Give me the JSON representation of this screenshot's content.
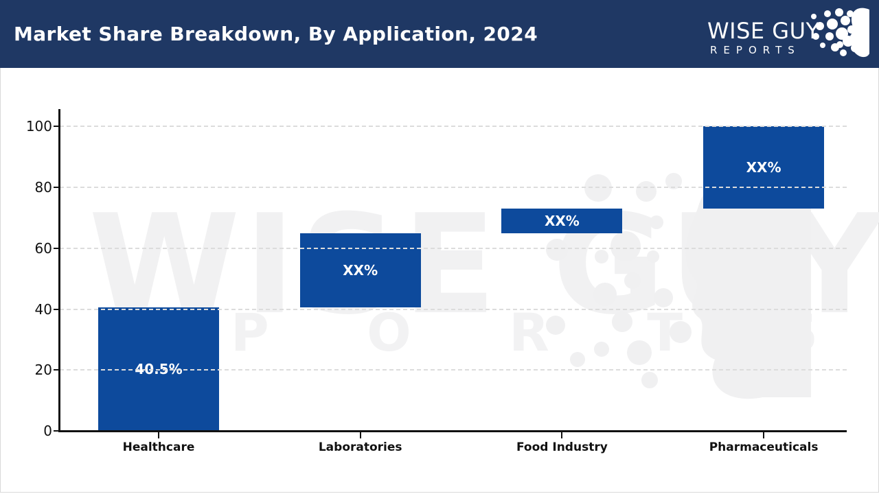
{
  "header": {
    "title": "Market Share Breakdown, By Application, 2024",
    "logo": {
      "line1": "WISE GUY",
      "line2": "REPORTS"
    }
  },
  "watermark": {
    "line1": "WISE GUY",
    "line2": "P O R T S"
  },
  "chart_data": {
    "type": "bar",
    "subtype": "floating-waterfall",
    "title": "Market Share Breakdown, By Application, 2024",
    "categories": [
      "Healthcare",
      "Laboratories",
      "Food Industry",
      "Pharmaceuticals"
    ],
    "bars": [
      {
        "category": "Healthcare",
        "start": 0,
        "end": 40.5,
        "label": "40.5%"
      },
      {
        "category": "Laboratories",
        "start": 40.5,
        "end": 65,
        "label": "XX%"
      },
      {
        "category": "Food Industry",
        "start": 65,
        "end": 73,
        "label": "XX%"
      },
      {
        "category": "Pharmaceuticals",
        "start": 73,
        "end": 100,
        "label": "XX%"
      }
    ],
    "ylim": [
      0,
      100
    ],
    "yticks": [
      0,
      20,
      40,
      60,
      80,
      100
    ],
    "grid": "horizontal-dashed",
    "legend": "none",
    "bar_color": "#0d4a9c",
    "bar_label_color": "#ffffff",
    "axis_color": "#111111",
    "grid_color": "#dcdcdc"
  },
  "colors": {
    "header_bg": "#1f3864",
    "card_border": "#d9d9d9",
    "watermark": "#f1f1f2"
  }
}
